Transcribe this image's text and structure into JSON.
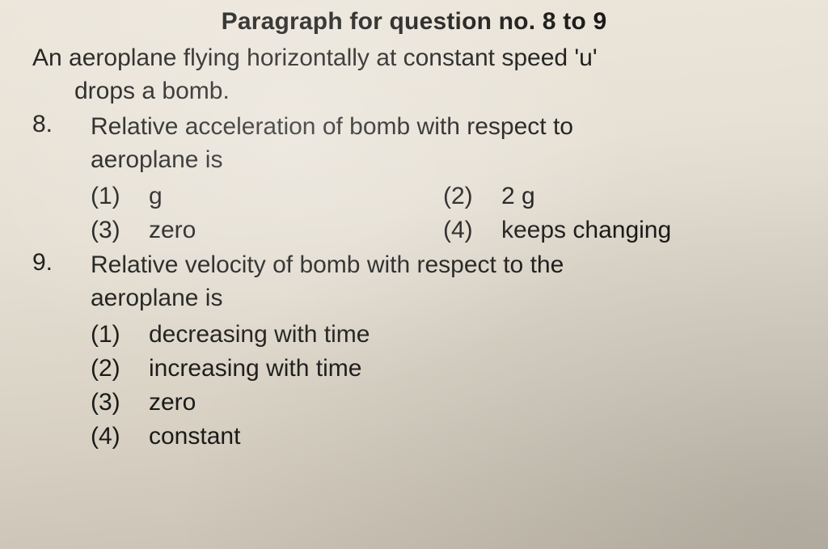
{
  "colors": {
    "text": "#1a1a18",
    "paper_top": "#ece6db",
    "paper_bottom": "#c7bfb1"
  },
  "typography": {
    "heading_fontsize_pt": 22,
    "body_fontsize_pt": 22,
    "heading_weight": "700",
    "body_weight": "400",
    "family": "Arial"
  },
  "heading": "Paragraph for question no. 8 to 9",
  "intro_line1": "An aeroplane flying horizontally at constant speed 'u'",
  "intro_line2": "drops a bomb.",
  "q8": {
    "number": "8.",
    "text_line1": "Relative acceleration of bomb with respect to",
    "text_line2": "aeroplane is",
    "options": {
      "o1": {
        "mark": "(1)",
        "label": "g"
      },
      "o2": {
        "mark": "(2)",
        "label": "2 g"
      },
      "o3": {
        "mark": "(3)",
        "label": "zero"
      },
      "o4": {
        "mark": "(4)",
        "label": "keeps changing"
      }
    }
  },
  "q9": {
    "number": "9.",
    "text_line1": "Relative velocity of bomb with respect to the",
    "text_line2": "aeroplane is",
    "options": {
      "o1": {
        "mark": "(1)",
        "label": "decreasing with time"
      },
      "o2": {
        "mark": "(2)",
        "label": "increasing with time"
      },
      "o3": {
        "mark": "(3)",
        "label": "zero"
      },
      "o4": {
        "mark": "(4)",
        "label": "constant"
      }
    }
  }
}
